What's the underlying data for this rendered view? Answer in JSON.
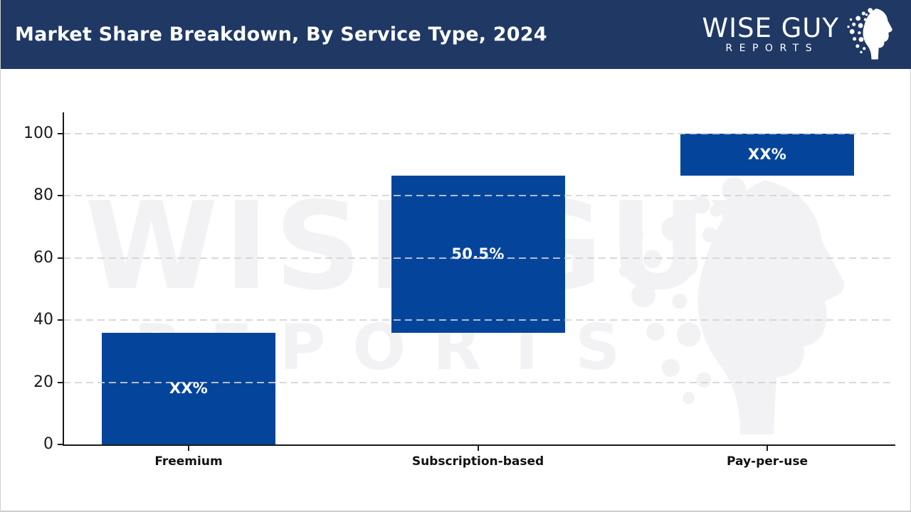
{
  "header": {
    "title": "Market Share Breakdown, By Service Type, 2024",
    "logo": {
      "line1": "WISE GUY",
      "line2": "REPORTS"
    }
  },
  "watermark": {
    "line1": "WISE GUY",
    "line2": "REPORTS"
  },
  "colors": {
    "header_bg": "#1f3864",
    "bar_blue": "#04459b",
    "gridline": "#d2d2d2",
    "watermark": "#f2f2f4"
  },
  "chart_data": {
    "type": "bar",
    "subtype": "floating-waterfall",
    "title": "Market Share Breakdown, By Service Type, 2024",
    "categories": [
      "Freemium",
      "Subscription-based",
      "Pay-per-use"
    ],
    "bars": [
      {
        "category": "Freemium",
        "from": 0,
        "to": 36,
        "label": "XX%"
      },
      {
        "category": "Subscription-based",
        "from": 36,
        "to": 86.5,
        "label": "50.5%"
      },
      {
        "category": "Pay-per-use",
        "from": 86.5,
        "to": 100,
        "label": "XX%"
      }
    ],
    "yticks": [
      0,
      20,
      40,
      60,
      80,
      100
    ],
    "ylim": [
      0,
      107
    ],
    "xlabel": "",
    "ylabel": "",
    "bar_color": "#04459b",
    "grid": "horizontal-dashed-over-bars",
    "legend": "none"
  }
}
